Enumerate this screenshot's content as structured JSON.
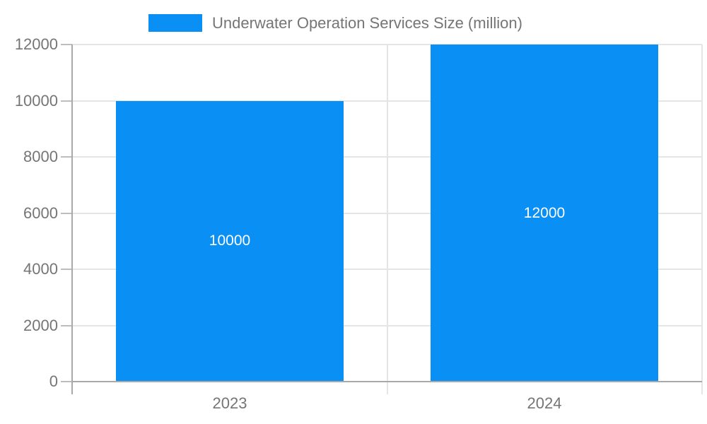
{
  "chart_data": {
    "type": "bar",
    "title": "Underwater Operation Services Size (million)",
    "categories": [
      "2023",
      "2024"
    ],
    "values": [
      10000,
      12000
    ],
    "bar_labels": [
      "10000",
      "12000"
    ],
    "xlabel": "",
    "ylabel": "",
    "ylim": [
      0,
      12000
    ],
    "ytick_step": 2000,
    "yticks": [
      0,
      2000,
      4000,
      6000,
      8000,
      10000,
      12000
    ],
    "grid": true,
    "legend_position": "top-center"
  },
  "colors": {
    "bar": "#0A90F5",
    "bar_label_text": "#FFFFFF",
    "axis_line": "#A9A9A9",
    "gridline": "#E5E5E5",
    "tick": "#BDBDBD",
    "label_text": "#757575"
  }
}
